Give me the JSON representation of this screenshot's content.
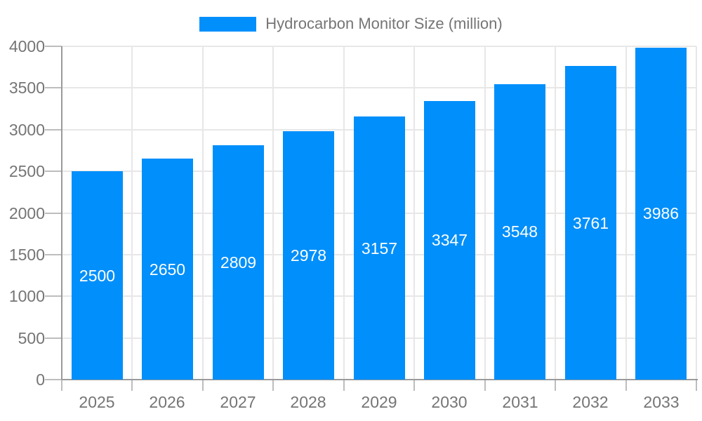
{
  "legend": {
    "label": "Hydrocarbon Monitor Size (million)",
    "swatch_color": "#008FFB"
  },
  "chart_data": {
    "type": "bar",
    "title": "Hydrocarbon Monitor Size (million)",
    "categories": [
      "2025",
      "2026",
      "2027",
      "2028",
      "2029",
      "2030",
      "2031",
      "2032",
      "2033"
    ],
    "values": [
      2500,
      2650,
      2809,
      2978,
      3157,
      3347,
      3548,
      3761,
      3986
    ],
    "series": [
      {
        "name": "Hydrocarbon Monitor Size (million)",
        "values": [
          2500,
          2650,
          2809,
          2978,
          3157,
          3347,
          3548,
          3761,
          3986
        ]
      }
    ],
    "xlabel": "",
    "ylabel": "",
    "ylim": [
      0,
      4000
    ],
    "yticks": [
      0,
      500,
      1000,
      1500,
      2000,
      2500,
      3000,
      3500,
      4000
    ],
    "grid": true,
    "legend_position": "top",
    "bar_color": "#008FFB",
    "bar_label_color": "#ffffff",
    "axis_label_color": "#757575",
    "gridline_color": "#e7e7e7"
  }
}
